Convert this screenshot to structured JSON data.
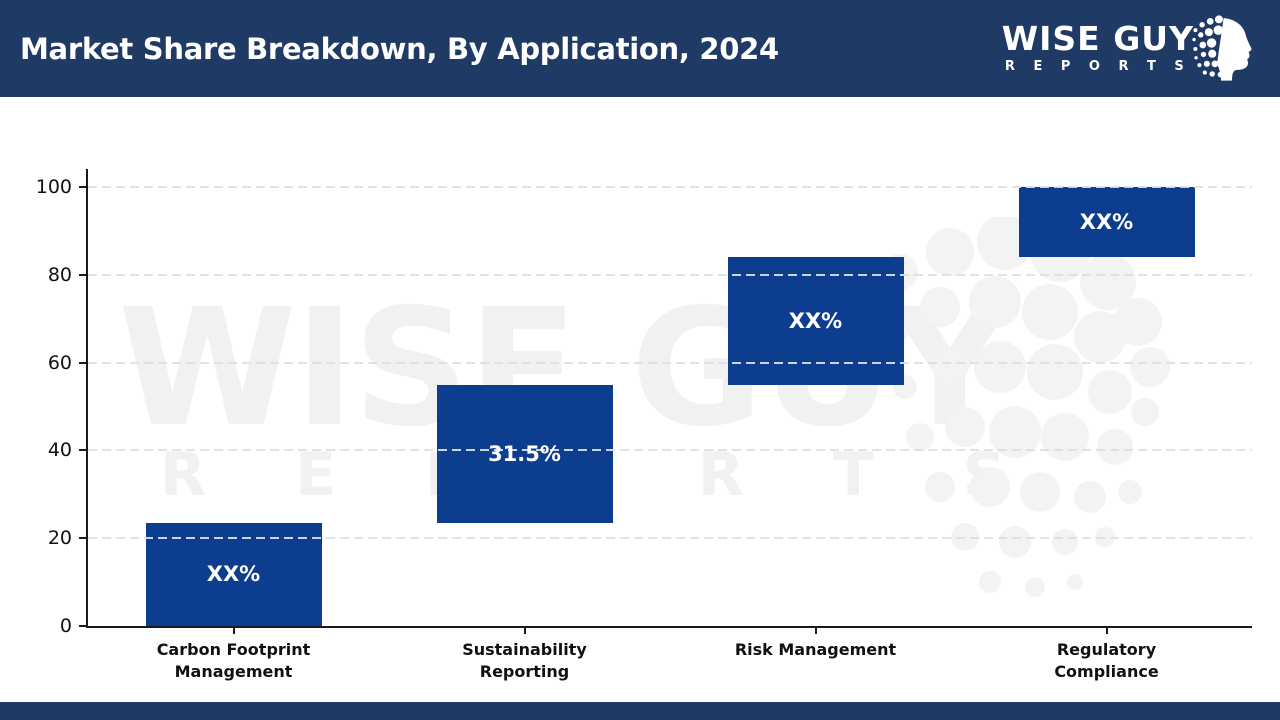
{
  "header": {
    "title": "Market Share Breakdown, By Application, 2024",
    "logo": {
      "line1": "WISE GUY",
      "line2": "R E P O R T S"
    }
  },
  "watermark": {
    "line1": "WISE GUY",
    "line2": "R E P O R T S"
  },
  "chart_data": {
    "type": "bar",
    "subtype": "waterfall-floating-bars",
    "title": "Market Share Breakdown, By Application, 2024",
    "categories": [
      "Carbon Footprint Management",
      "Sustainability Reporting",
      "Risk Management",
      "Regulatory Compliance"
    ],
    "category_lines": [
      [
        "Carbon Footprint",
        "Management"
      ],
      [
        "Sustainability",
        "Reporting"
      ],
      [
        "Risk Management"
      ],
      [
        "Regulatory",
        "Compliance"
      ]
    ],
    "series": [
      {
        "name": "Market share (%)",
        "segments": [
          {
            "category": "Carbon Footprint Management",
            "start": 0,
            "end": 23.5,
            "label": "XX%"
          },
          {
            "category": "Sustainability Reporting",
            "start": 23.5,
            "end": 55,
            "label": "31.5%"
          },
          {
            "category": "Risk Management",
            "start": 55,
            "end": 84,
            "label": "XX%"
          },
          {
            "category": "Regulatory Compliance",
            "start": 84,
            "end": 100,
            "label": "XX%"
          }
        ]
      }
    ],
    "xlabel": "",
    "ylabel": "",
    "ylim": [
      0,
      100
    ],
    "yticks": [
      0,
      20,
      40,
      60,
      80,
      100
    ],
    "grid": "horizontal-dashed",
    "legend": "none",
    "bar_color": "#0c3d8f"
  },
  "colors": {
    "header_bg": "#203a66",
    "footer_bg": "#203a66",
    "bar": "#0c3d8f",
    "grid": "#e1e1e1",
    "axis": "#1a1a1a",
    "watermark": "#f1f1f1"
  }
}
